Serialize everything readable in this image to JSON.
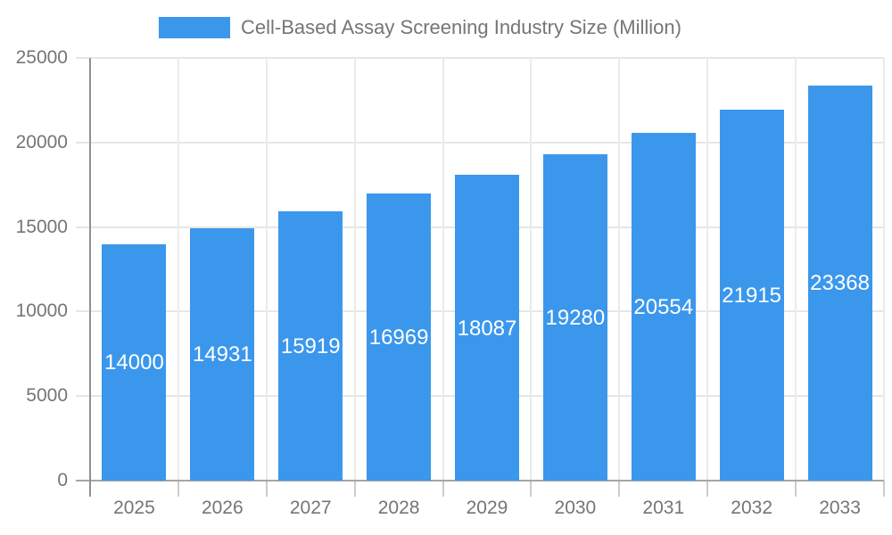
{
  "legend": {
    "label": "Cell-Based Assay Screening Industry Size (Million)"
  },
  "chart_data": {
    "type": "bar",
    "title": "Cell-Based Assay Screening Industry Size (Million)",
    "categories": [
      "2025",
      "2026",
      "2027",
      "2028",
      "2029",
      "2030",
      "2031",
      "2032",
      "2033"
    ],
    "values": [
      14000,
      14931,
      15919,
      16969,
      18087,
      19280,
      20554,
      21915,
      23368
    ],
    "xlabel": "",
    "ylabel": "",
    "ylim": [
      0,
      25000
    ],
    "yticks": [
      0,
      5000,
      10000,
      15000,
      20000,
      25000
    ],
    "grid": true,
    "legend_position": "top",
    "value_labels": "inside-center",
    "colors": {
      "bar": "#3b97ec",
      "bar_label_text": "#ffffff",
      "axis_text": "#757575",
      "grid_line": "#e6e6e6",
      "grid_line_vertical": "#ebebeb",
      "axis_line": "#909090",
      "baseline": "#a6a6a6",
      "tick": "#cccccc",
      "background": "#ffffff"
    }
  }
}
